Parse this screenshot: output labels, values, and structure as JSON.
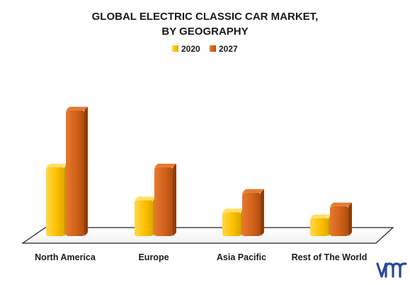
{
  "chart_data": {
    "type": "bar",
    "title_lines": [
      "GLOBAL ELECTRIC CLASSIC CAR MARKET,",
      "BY GEOGRAPHY"
    ],
    "categories": [
      "North America",
      "Europe",
      "Asia Pacific",
      "Rest of The World"
    ],
    "series": [
      {
        "name": "2020",
        "color": "#ffc000",
        "values": [
          4.6,
          2.4,
          1.6,
          1.2
        ]
      },
      {
        "name": "2027",
        "color": "#d9661a",
        "values": [
          8.4,
          4.6,
          2.9,
          2.0
        ]
      }
    ],
    "ylim": [
      0,
      9
    ],
    "grid": false,
    "legend_position": "top-center",
    "logo": "vmr-logo"
  }
}
